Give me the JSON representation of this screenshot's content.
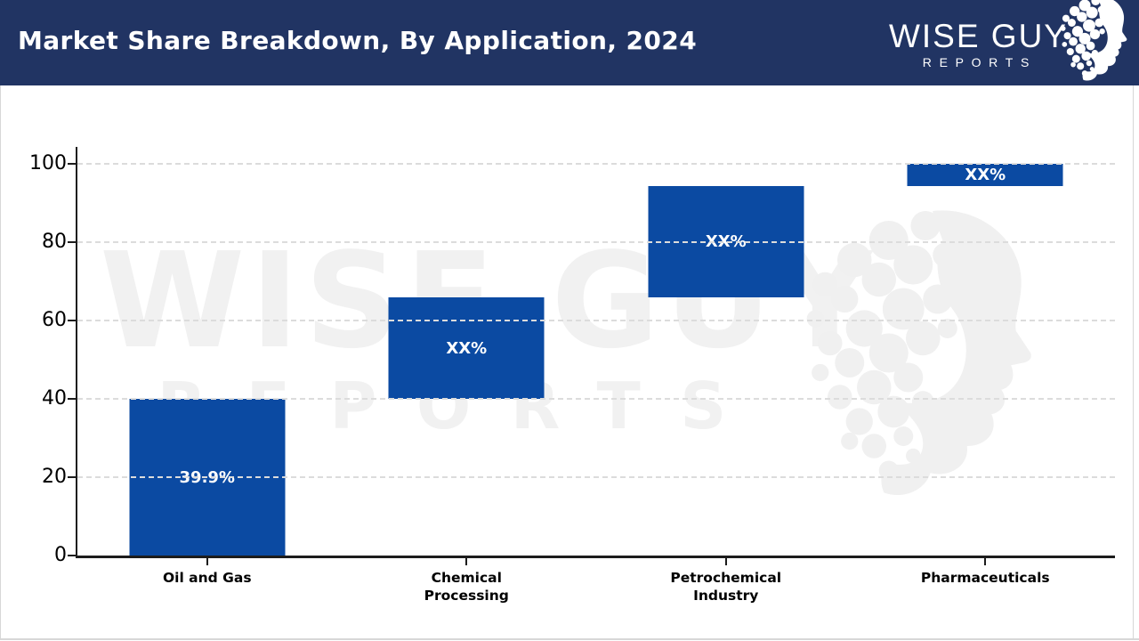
{
  "header": {
    "title": "Market Share Breakdown, By Application, 2024",
    "bg_color": "#213463",
    "text_color": "#ffffff",
    "logo": {
      "name": "WISE GUY",
      "tagline": "REPORTS"
    }
  },
  "watermark": {
    "line1": "WISE GUY",
    "line2": "REPORTS"
  },
  "chart_data": {
    "type": "bar",
    "variant": "stacked-waterfall",
    "title": "Market Share Breakdown, By Application, 2024",
    "categories": [
      "Oil and Gas",
      "Chemical Processing",
      "Petrochemical Industry",
      "Pharmaceuticals"
    ],
    "tick_label_lines": [
      [
        "Oil and Gas"
      ],
      [
        "Chemical",
        "Processing"
      ],
      [
        "Petrochemical",
        "Industry"
      ],
      [
        "Pharmaceuticals"
      ]
    ],
    "segments": [
      {
        "category": "Oil and Gas",
        "start": 0,
        "end": 39.9,
        "label": "39.9%"
      },
      {
        "category": "Chemical Processing",
        "start": 40.0,
        "end": 65.9,
        "label": "XX%"
      },
      {
        "category": "Petrochemical Industry",
        "start": 65.9,
        "end": 94.3,
        "label": "XX%"
      },
      {
        "category": "Pharmaceuticals",
        "start": 94.3,
        "end": 100,
        "label": "XX%"
      }
    ],
    "y_ticks": [
      0,
      20,
      40,
      60,
      80,
      100
    ],
    "ylim": [
      0,
      105
    ],
    "grid": true,
    "gridline_color": "#dcdcdc",
    "axis_color": "#1c1c1c",
    "bar_color": "#0b4aa2",
    "bar_label_color": "#ffffff",
    "legend": "none"
  }
}
